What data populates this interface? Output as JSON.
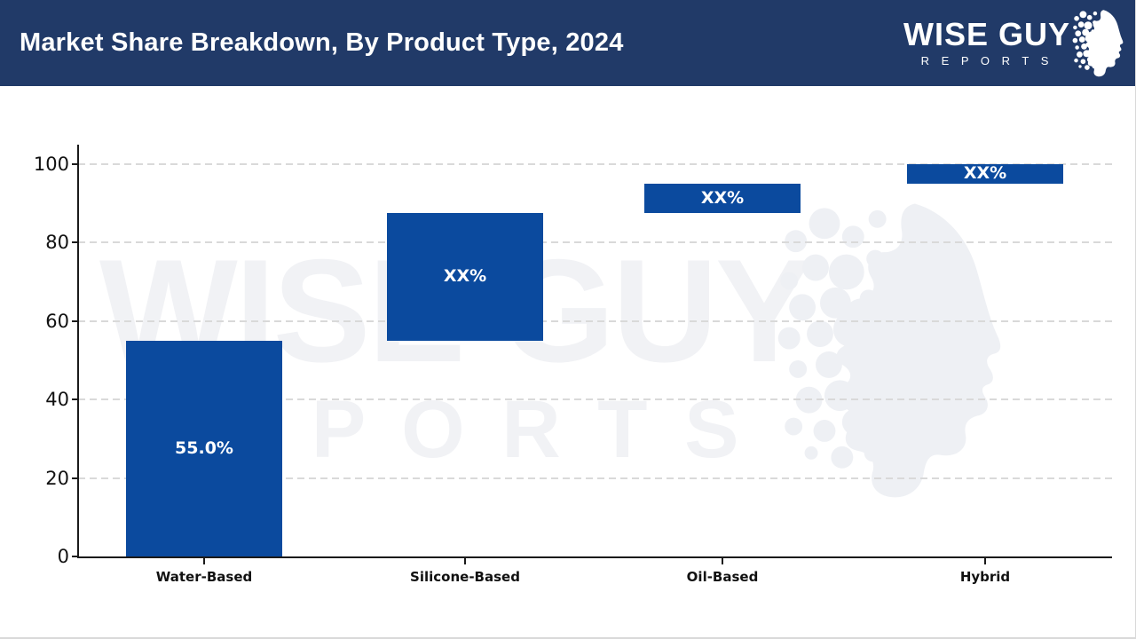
{
  "header": {
    "title": "Market Share Breakdown, By Product Type, 2024",
    "logo": {
      "wordmark": "WISE GUY",
      "subtext": "R E P O R T S",
      "icon": "dotted-head-profile-icon"
    }
  },
  "watermark": {
    "wordmark": "WISE GUY",
    "subtext": "R E P O R T S",
    "icon": "dotted-head-profile-icon"
  },
  "colors": {
    "header_bg": "#213a68",
    "bar": "#0b4a9e",
    "bar_label": "#ffffff",
    "grid": "#d9d9d9",
    "axis": "#1a1a1a",
    "watermark": "#f1f2f5"
  },
  "chart_data": {
    "type": "bar",
    "subtype": "waterfall",
    "title": "Market Share Breakdown, By Product Type, 2024",
    "categories": [
      "Water-Based",
      "Silicone-Based",
      "Oil-Based",
      "Hybrid"
    ],
    "segments": [
      {
        "category": "Water-Based",
        "start": 0,
        "end": 55,
        "value": 55.0,
        "label": "55.0%"
      },
      {
        "category": "Silicone-Based",
        "start": 55,
        "end": 87.5,
        "value": 32.5,
        "label": "XX%"
      },
      {
        "category": "Oil-Based",
        "start": 87.5,
        "end": 95,
        "value": 7.5,
        "label": "XX%"
      },
      {
        "category": "Hybrid",
        "start": 95,
        "end": 100,
        "value": 5.0,
        "label": "XX%"
      }
    ],
    "xlabel": "",
    "ylabel": "",
    "yticks": [
      0,
      20,
      40,
      60,
      80,
      100
    ],
    "ylim": [
      0,
      105
    ],
    "grid": {
      "horizontal": true,
      "vertical": false,
      "style": "dashed"
    },
    "legend_position": "none"
  }
}
